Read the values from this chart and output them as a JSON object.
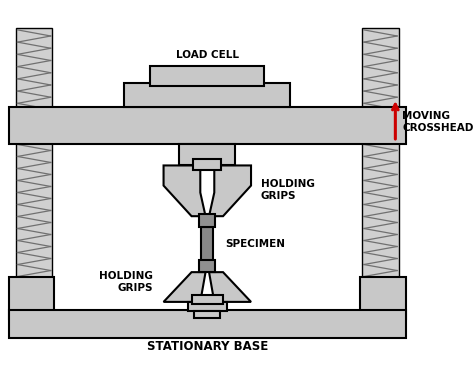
{
  "bg_color": "#ffffff",
  "gray": "#c8c8c8",
  "gray_dark": "#a0a0a0",
  "black": "#000000",
  "red": "#cc0000",
  "screw_bg": "#d0d0d0",
  "screw_line": "#707070",
  "label_load_cell": "LOAD CELL",
  "label_holding_grips_top": "HOLDING\nGRIPS",
  "label_holding_grips_bot": "HOLDING\nGRIPS",
  "label_specimen": "SPECIMEN",
  "label_moving_crosshead": "MOVING\nCROSSHEAD",
  "label_base": "STATIONARY BASE",
  "font_size": 7.5,
  "font_size_base": 8.5,
  "lw": 1.5
}
